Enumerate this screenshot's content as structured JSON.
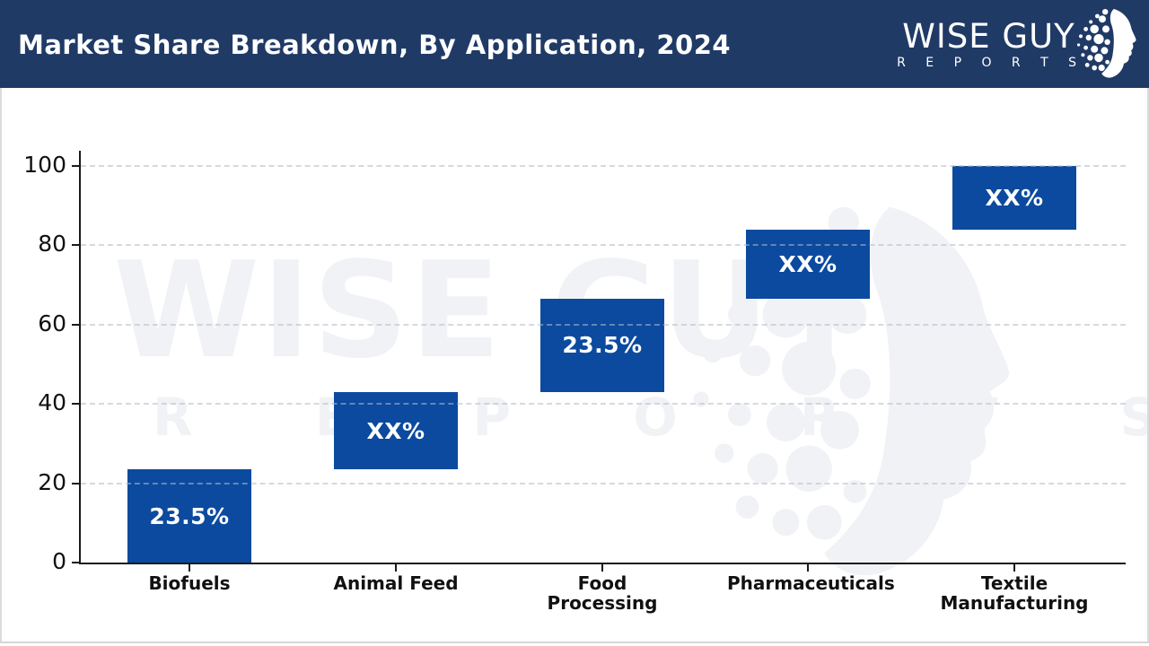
{
  "header": {
    "title": "Market Share Breakdown, By Application, 2024",
    "bg_color": "#203A66",
    "logo": {
      "line1": "WISE GUY",
      "line2": "R E P O R T S"
    }
  },
  "watermark": {
    "line1": "WISE GUY",
    "line2": "R E P O R T S"
  },
  "icons": {
    "logo_head": "head-profile-made-of-dots",
    "watermark_head": "head-profile-made-of-dots"
  },
  "chart_data": {
    "type": "bar",
    "variant": "waterfall-cumulative-floating-bars",
    "title": "Market Share Breakdown, By Application, 2024",
    "categories": [
      "Biofuels",
      "Animal Feed",
      "Food Processing",
      "Pharmaceuticals",
      "Textile Manufacturing"
    ],
    "bars": [
      {
        "category": "Biofuels",
        "label": "23.5%",
        "start": 0,
        "end": 23.5
      },
      {
        "category": "Animal Feed",
        "label": "XX%",
        "start": 23.5,
        "end": 43
      },
      {
        "category": "Food Processing",
        "label": "23.5%",
        "start": 43,
        "end": 66.5
      },
      {
        "category": "Pharmaceuticals",
        "label": "XX%",
        "start": 66.5,
        "end": 84
      },
      {
        "category": "Textile Manufacturing",
        "label": "XX%",
        "start": 84,
        "end": 100
      }
    ],
    "xlabel": "",
    "ylabel": "",
    "ylim": [
      0,
      100
    ],
    "yticks": [
      0,
      20,
      40,
      60,
      80,
      100
    ],
    "grid": "horizontal-dashed",
    "legend": "none",
    "bar_color": "#0B4A9F",
    "colors": {
      "header_bg": "#203A66",
      "bar": "#0B4A9F",
      "gridline": "#DEDEDE",
      "axis": "#1a1a1a",
      "watermark": "#F1F2F5"
    }
  }
}
